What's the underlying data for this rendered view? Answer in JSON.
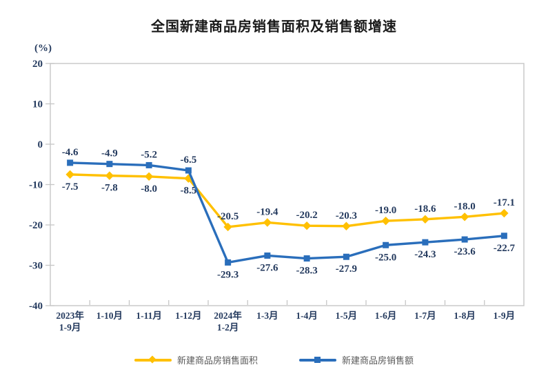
{
  "title": "全国新建商品房销售面积及销售额增速",
  "unit_label": "(%)",
  "chart_data": {
    "type": "line",
    "title": "全国新建商品房销售面积及销售额增速",
    "ylabel": "(%)",
    "xlabel": "",
    "categories": [
      "2023年\n1-9月",
      "1-10月",
      "1-11月",
      "1-12月",
      "2024年\n1-2月",
      "1-3月",
      "1-4月",
      "1-5月",
      "1-6月",
      "1-7月",
      "1-8月",
      "1-9月"
    ],
    "series": [
      {
        "name": "新建商品房销售面积",
        "color": "#FFC000",
        "marker": "diamond",
        "values": [
          -7.5,
          -7.8,
          -8.0,
          -8.5,
          -20.5,
          -19.4,
          -20.2,
          -20.3,
          -19.0,
          -18.6,
          -18.0,
          -17.1
        ],
        "label_above": [
          false,
          false,
          false,
          false,
          true,
          true,
          true,
          true,
          true,
          true,
          true,
          true
        ]
      },
      {
        "name": "新建商品房销售额",
        "color": "#2A6EBB",
        "marker": "square",
        "values": [
          -4.6,
          -4.9,
          -5.2,
          -6.5,
          -29.3,
          -27.6,
          -28.3,
          -27.9,
          -25.0,
          -24.3,
          -23.6,
          -22.7
        ],
        "label_above": [
          true,
          true,
          true,
          true,
          false,
          false,
          false,
          false,
          false,
          false,
          false,
          false
        ]
      }
    ],
    "ylim": [
      -40,
      20
    ],
    "yticks": [
      20,
      10,
      0,
      -10,
      -20,
      -30,
      -40
    ],
    "grid": false,
    "legend_position": "bottom",
    "label_color": "#243A5E",
    "axis_color": "#C6C6C6"
  },
  "legend": {
    "items": [
      {
        "label": "新建商品房销售面积"
      },
      {
        "label": "新建商品房销售额"
      }
    ]
  }
}
